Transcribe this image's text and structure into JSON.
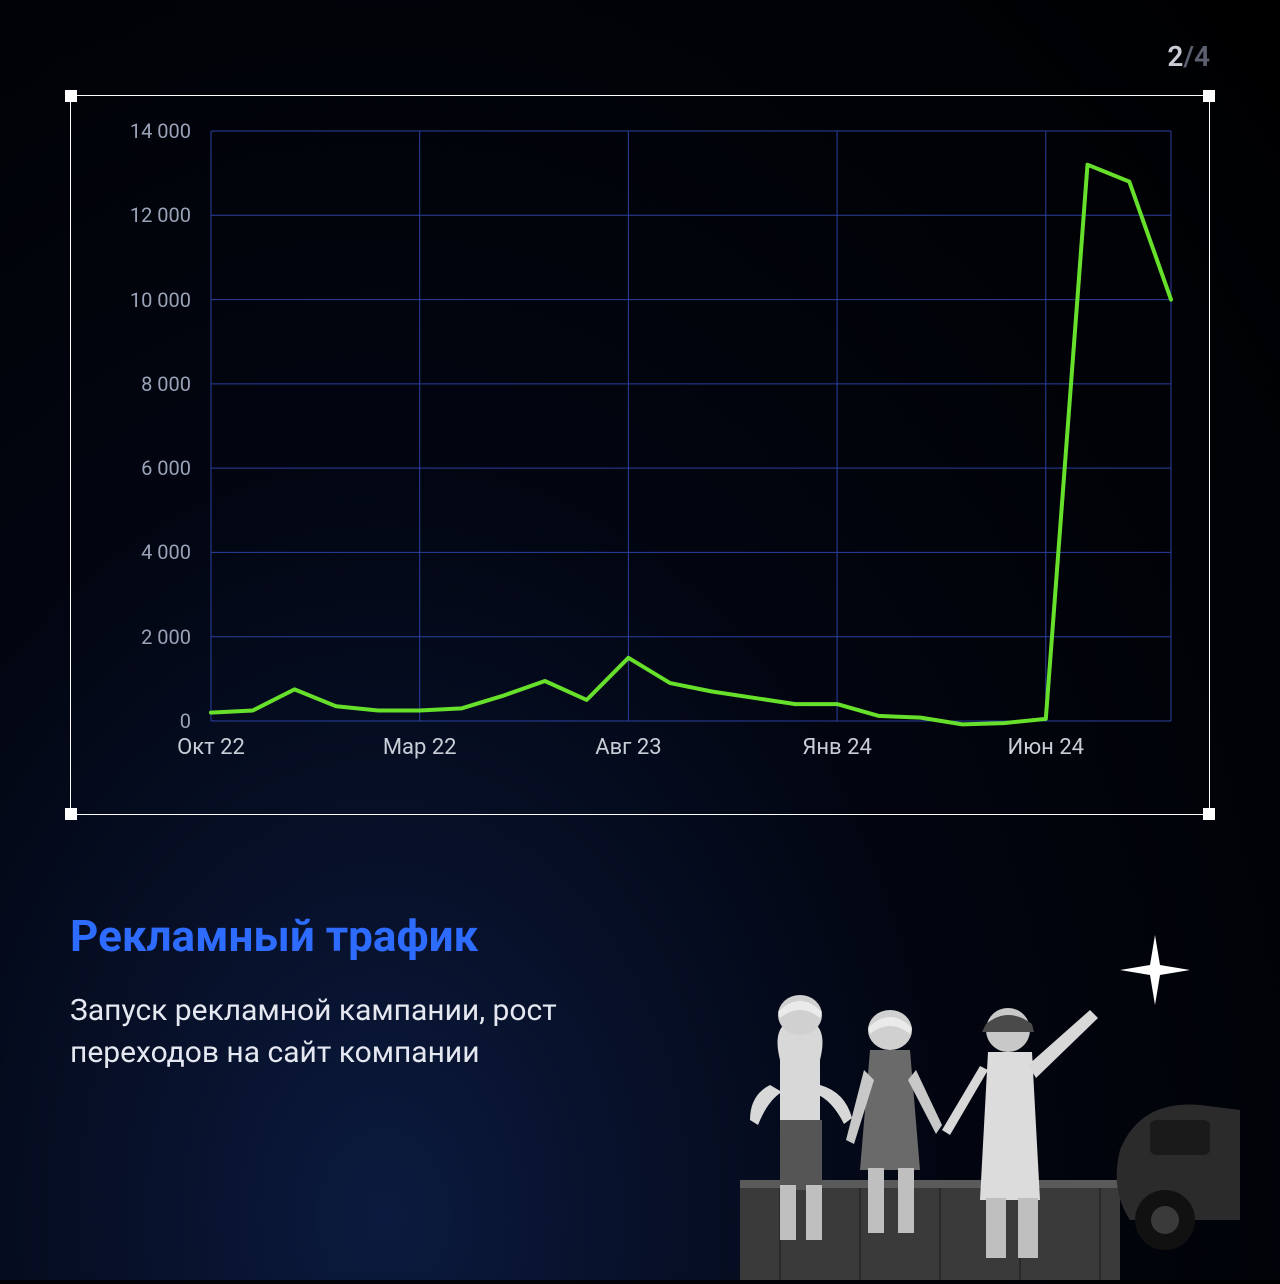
{
  "pagination": {
    "current": "2",
    "separator": "/",
    "total": "4"
  },
  "chart": {
    "type": "line",
    "line_color": "#66e02b",
    "line_width": 4,
    "grid_color": "#2b3f9e",
    "grid_width": 1,
    "background": "transparent",
    "ylim": [
      0,
      14000
    ],
    "ytick_step": 2000,
    "yticks": [
      {
        "value": 0,
        "label": "0"
      },
      {
        "value": 2000,
        "label": "2 000"
      },
      {
        "value": 4000,
        "label": "4 000"
      },
      {
        "value": 6000,
        "label": "6 000"
      },
      {
        "value": 8000,
        "label": "8 000"
      },
      {
        "value": 10000,
        "label": "10 000"
      },
      {
        "value": 12000,
        "label": "12 000"
      },
      {
        "value": 14000,
        "label": "14 000"
      }
    ],
    "xticks": [
      {
        "i": 0,
        "label": "Окт 22"
      },
      {
        "i": 5,
        "label": "Мар 22"
      },
      {
        "i": 10,
        "label": "Авг 23"
      },
      {
        "i": 15,
        "label": "Янв 24"
      },
      {
        "i": 20,
        "label": "Июн 24"
      }
    ],
    "n_points": 24,
    "values": [
      200,
      250,
      750,
      350,
      250,
      250,
      300,
      600,
      950,
      500,
      1500,
      900,
      700,
      550,
      400,
      400,
      120,
      80,
      -80,
      -50,
      50,
      13200,
      12800,
      10000
    ],
    "xgrid_indices": [
      0,
      5,
      10,
      15,
      20
    ]
  },
  "title": "Рекламный трафик",
  "subtitle": "Запуск рекламной кампании, рост переходов на сайт компании",
  "colors": {
    "title": "#2e6bff",
    "text": "#e5e8f0",
    "tick": "#9aa3b8",
    "frame": "#ffffff",
    "bg_dark": "#000000",
    "bg_accent": "#0b1a3e"
  },
  "sparkle_color": "#ffffff"
}
